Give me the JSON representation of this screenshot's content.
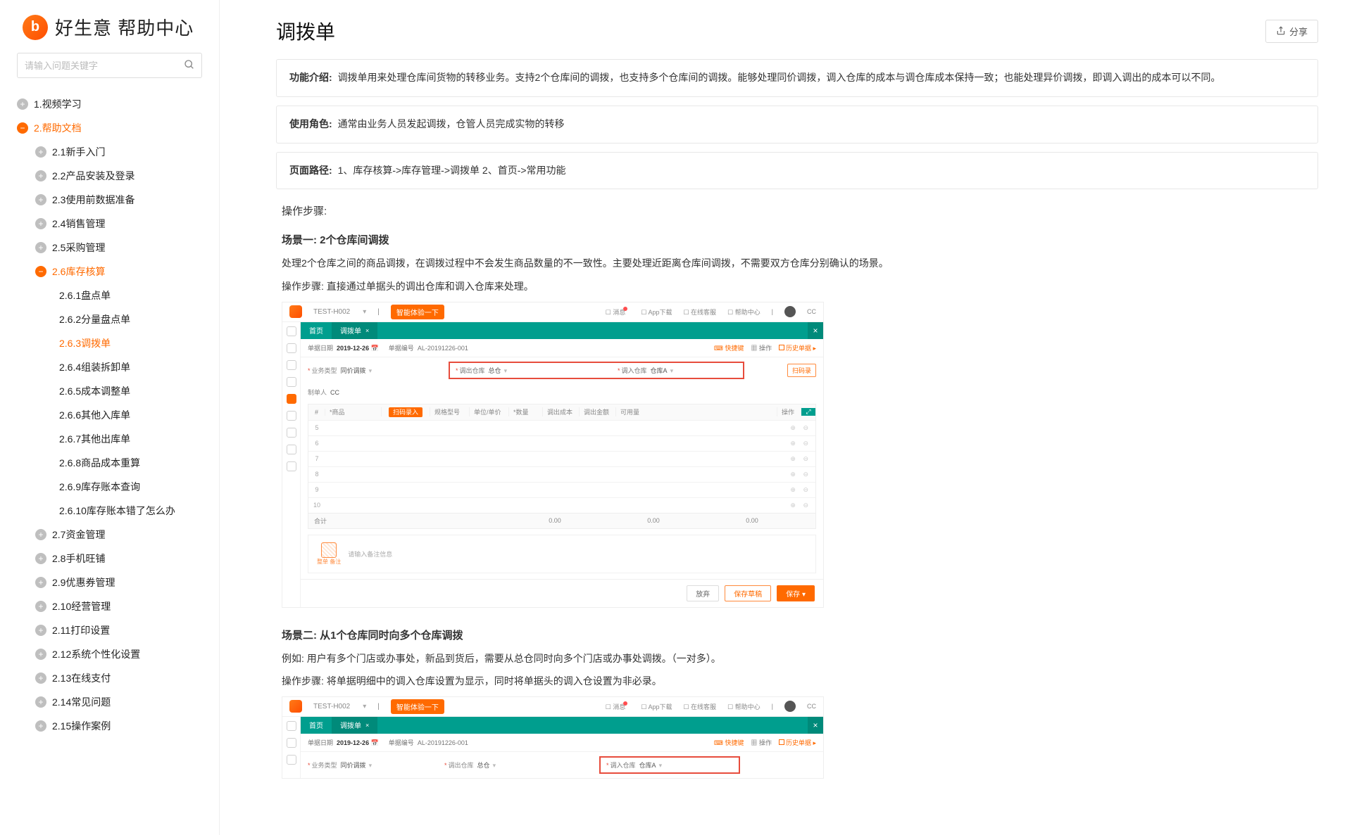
{
  "brand": {
    "logo_letter": "b",
    "title": "好生意 帮助中心"
  },
  "search": {
    "placeholder": "请输入问题关键字"
  },
  "nav": [
    {
      "label": "1.视频学习",
      "lvl": 0,
      "icon": "plus"
    },
    {
      "label": "2.帮助文档",
      "lvl": 0,
      "icon": "minus",
      "open": true
    },
    {
      "label": "2.1新手入门",
      "lvl": 1,
      "icon": "plus"
    },
    {
      "label": "2.2产品安装及登录",
      "lvl": 1,
      "icon": "plus"
    },
    {
      "label": "2.3使用前数据准备",
      "lvl": 1,
      "icon": "plus"
    },
    {
      "label": "2.4销售管理",
      "lvl": 1,
      "icon": "plus"
    },
    {
      "label": "2.5采购管理",
      "lvl": 1,
      "icon": "plus"
    },
    {
      "label": "2.6库存核算",
      "lvl": 1,
      "icon": "minus",
      "open": true
    },
    {
      "label": "2.6.1盘点单",
      "lvl": 2
    },
    {
      "label": "2.6.2分量盘点单",
      "lvl": 2
    },
    {
      "label": "2.6.3调拨单",
      "lvl": 2,
      "active": true
    },
    {
      "label": "2.6.4组装拆卸单",
      "lvl": 2
    },
    {
      "label": "2.6.5成本调整单",
      "lvl": 2
    },
    {
      "label": "2.6.6其他入库单",
      "lvl": 2
    },
    {
      "label": "2.6.7其他出库单",
      "lvl": 2
    },
    {
      "label": "2.6.8商品成本重算",
      "lvl": 2
    },
    {
      "label": "2.6.9库存账本查询",
      "lvl": 2
    },
    {
      "label": "2.6.10库存账本错了怎么办",
      "lvl": 2
    },
    {
      "label": "2.7资金管理",
      "lvl": 1,
      "icon": "plus"
    },
    {
      "label": "2.8手机旺铺",
      "lvl": 1,
      "icon": "plus"
    },
    {
      "label": "2.9优惠券管理",
      "lvl": 1,
      "icon": "plus"
    },
    {
      "label": "2.10经营管理",
      "lvl": 1,
      "icon": "plus"
    },
    {
      "label": "2.11打印设置",
      "lvl": 1,
      "icon": "plus"
    },
    {
      "label": "2.12系统个性化设置",
      "lvl": 1,
      "icon": "plus"
    },
    {
      "label": "2.13在线支付",
      "lvl": 1,
      "icon": "plus"
    },
    {
      "label": "2.14常见问题",
      "lvl": 1,
      "icon": "plus"
    },
    {
      "label": "2.15操作案例",
      "lvl": 1,
      "icon": "plus"
    }
  ],
  "page_title": "调拨单",
  "share_label": "分享",
  "box_intro_label": "功能介绍:",
  "box_intro_text": "调拨单用来处理仓库间货物的转移业务。支持2个仓库间的调拨，也支持多个仓库间的调拨。能够处理同价调拨，调入仓库的成本与调仓库成本保持一致；也能处理异价调拨，即调入调出的成本可以不同。",
  "box_role_label": "使用角色:",
  "box_role_text": "通常由业务人员发起调拨，仓管人员完成实物的转移",
  "box_path_label": "页面路径:",
  "box_path_text": "1、库存核算->库存管理->调拨单 2、首页->常用功能",
  "section_steps": "操作步骤:",
  "scene1_title": "场景一:  2个仓库间调拨",
  "scene1_p1": "处理2个仓库之间的商品调拨，在调拨过程中不会发生商品数量的不一致性。主要处理近距离仓库间调拨，不需要双方仓库分别确认的场景。",
  "scene1_p2": "操作步骤:  直接通过单据头的调出仓库和调入仓库来处理。",
  "scene2_title": "场景二:  从1个仓库同时向多个仓库调拨",
  "scene2_p1": "例如:  用户有多个门店或办事处，新品到货后，需要从总仓同时向多个门店或办事处调拨。（一对多）。",
  "scene2_p2": "操作步骤:  将单据明细中的调入仓库设置为显示，同时将单据头的调入仓设置为非必录。",
  "shot": {
    "tenant": "TEST-H002",
    "orange_btn": "智能体验一下",
    "top_msgs": "消息",
    "top_app": "App下载",
    "top_link1": "在线客服",
    "top_link2": "帮助中心",
    "top_user": "CC",
    "tab_home": "首页",
    "tab_doc": "调拨单",
    "date_label": "单据日期",
    "date_val": "2019-12-26",
    "no_label": "单据编号",
    "no_val": "AL-20191226-001",
    "link_fast": "快捷键",
    "link_act": "操作",
    "link_hist": "历史单据",
    "biz_label": "业务类型",
    "biz_val": "同价调拨",
    "out_label": "调出仓库",
    "out_val": "总仓",
    "in_label": "调入仓库",
    "in_val": "仓库A",
    "scan_btn": "扫码录",
    "maker_label": "制单人",
    "maker_val": "CC",
    "th_goods": "商品",
    "th_btn": "扫码录入",
    "th_spec": "规格型号",
    "th_unit": "单位/单价",
    "th_qty": "数量",
    "th_cost": "调出成本",
    "th_amt": "调出金额",
    "th_avail": "可用量",
    "th_ops": "操作",
    "row_ids": [
      "5",
      "6",
      "7",
      "8",
      "9",
      "10"
    ],
    "sum_label": "合计",
    "sum_zero": "0.00",
    "remark_label": "备注",
    "remark_ph": "请输入备注信息",
    "remark_side": "整单\n备注",
    "btn_discard": "放弃",
    "btn_draft": "保存草稿",
    "btn_save": "保存"
  }
}
